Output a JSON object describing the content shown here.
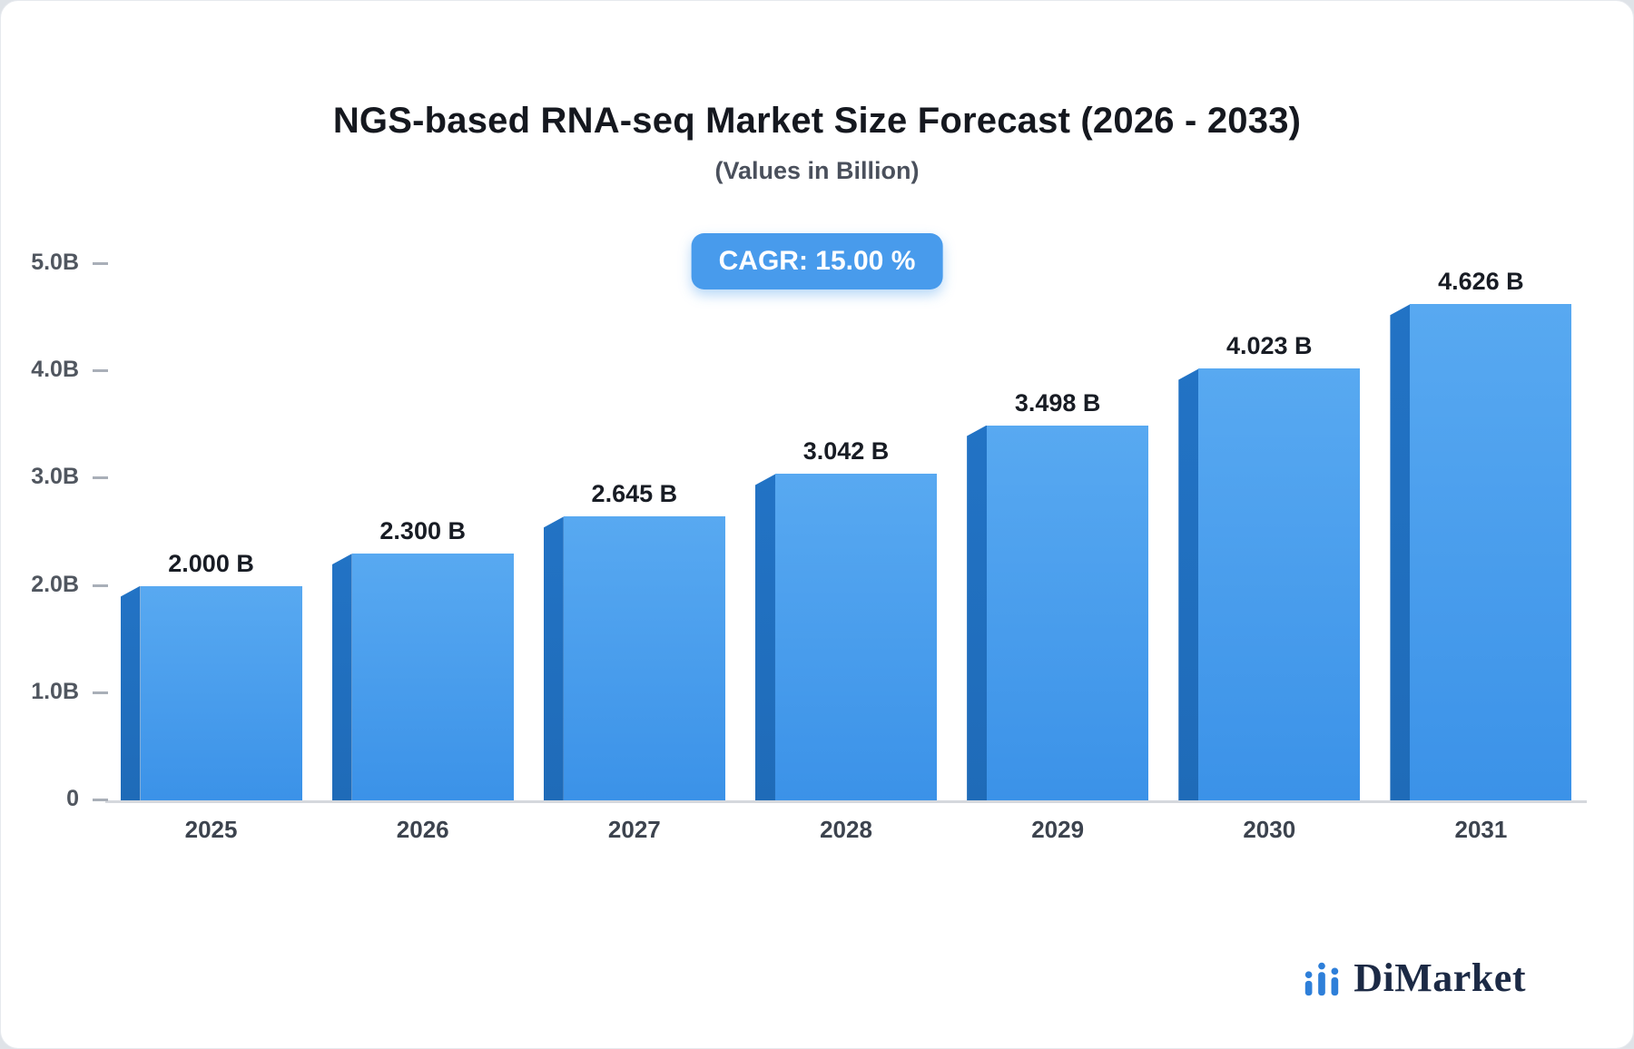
{
  "title": "NGS-based RNA-seq Market Size Forecast (2026 - 2033)",
  "subtitle": "(Values in Billion)",
  "cagr_badge": "CAGR: 15.00 %",
  "brand": {
    "name": "DiMarket"
  },
  "chart_data": {
    "type": "bar",
    "title": "NGS-based RNA-seq Market Size Forecast (2026 - 2033)",
    "subtitle": "(Values in Billion)",
    "categories": [
      "2025",
      "2026",
      "2027",
      "2028",
      "2029",
      "2030",
      "2031"
    ],
    "values": [
      2.0,
      2.3,
      2.645,
      3.042,
      3.498,
      4.023,
      4.626
    ],
    "value_labels": [
      "2.000 B",
      "2.300 B",
      "2.645 B",
      "3.042 B",
      "3.498 B",
      "4.023 B",
      "4.626 B"
    ],
    "xlabel": "",
    "ylabel": "",
    "ylim": [
      0,
      5.0
    ],
    "y_ticks": [
      "0",
      "1.0B",
      "2.0B",
      "3.0B",
      "4.0B",
      "5.0B"
    ],
    "grid": "off",
    "legend": "none",
    "colors": {
      "bar_top": "#58a9f1",
      "bar_bottom": "#3b92e8",
      "bar_side": "#2273c5",
      "badge_bg": "#489bec",
      "brand": "#2e7fd9"
    }
  }
}
